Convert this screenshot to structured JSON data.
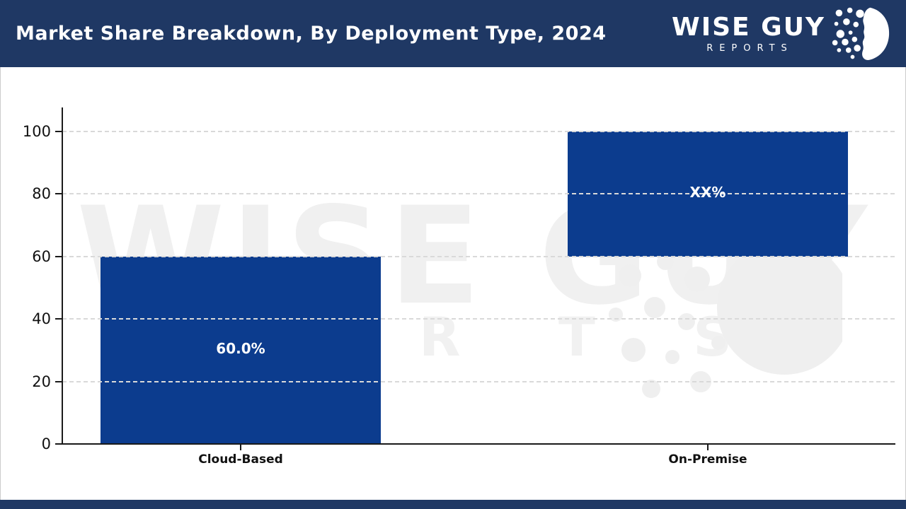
{
  "header": {
    "title": "Market Share Breakdown, By Deployment Type, 2024",
    "bg_color": "#1f3864",
    "logo": {
      "wordmark": "WISE GUY",
      "subtext": "REPORTS"
    }
  },
  "watermark": {
    "wordmark": "WISE GUY",
    "subtext": "R T S"
  },
  "chart_data": {
    "type": "bar",
    "title": "Market Share Breakdown, By Deployment Type, 2024",
    "categories": [
      "Cloud-Based",
      "On-Premise"
    ],
    "bars": [
      {
        "category": "Cloud-Based",
        "start": 0,
        "end": 60,
        "label": "60.0%"
      },
      {
        "category": "On-Premise",
        "start": 60,
        "end": 100,
        "label": "XX%"
      }
    ],
    "ylim": [
      0,
      100
    ],
    "yticks": [
      0,
      20,
      40,
      60,
      80,
      100
    ],
    "grid": "horizontal-dashed",
    "grid_color": "#d9d9d9",
    "bar_color": "#0c3c8e",
    "xlabel": "",
    "ylabel": ""
  },
  "footer": {
    "bg_color": "#1f3864"
  }
}
